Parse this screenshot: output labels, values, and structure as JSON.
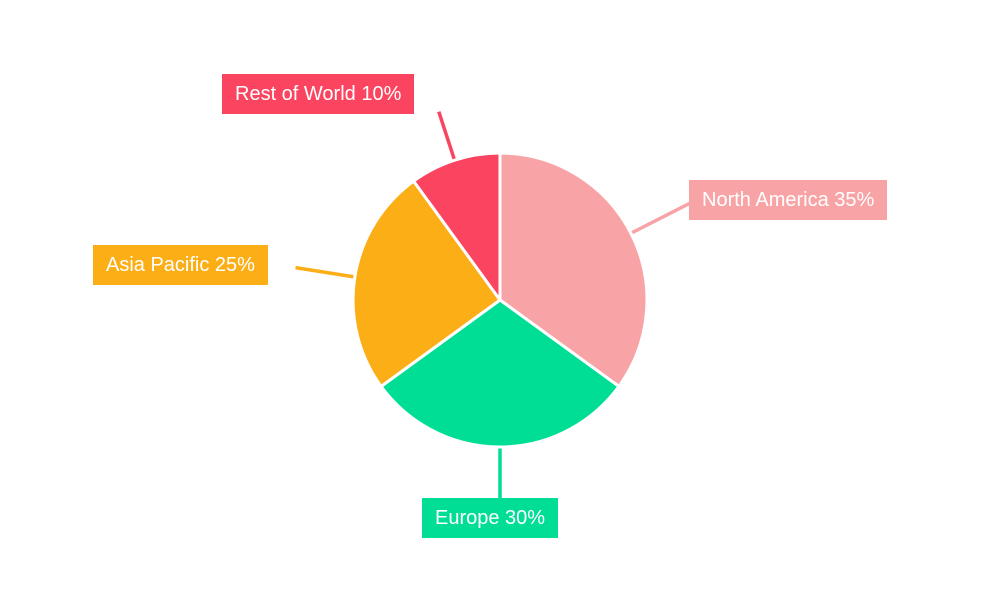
{
  "chart_data": {
    "type": "pie",
    "start_angle": "top",
    "direction": "clockwise",
    "label_format": "{label} {value}%",
    "background": "#FFFFFF",
    "slices": [
      {
        "label": "North America",
        "value": 35,
        "color": "#F8A3A6"
      },
      {
        "label": "Europe",
        "value": 30,
        "color": "#00DE95"
      },
      {
        "label": "Asia Pacific",
        "value": 25,
        "color": "#FCAE17"
      },
      {
        "label": "Rest of World",
        "value": 10,
        "color": "#FB4460"
      }
    ]
  }
}
